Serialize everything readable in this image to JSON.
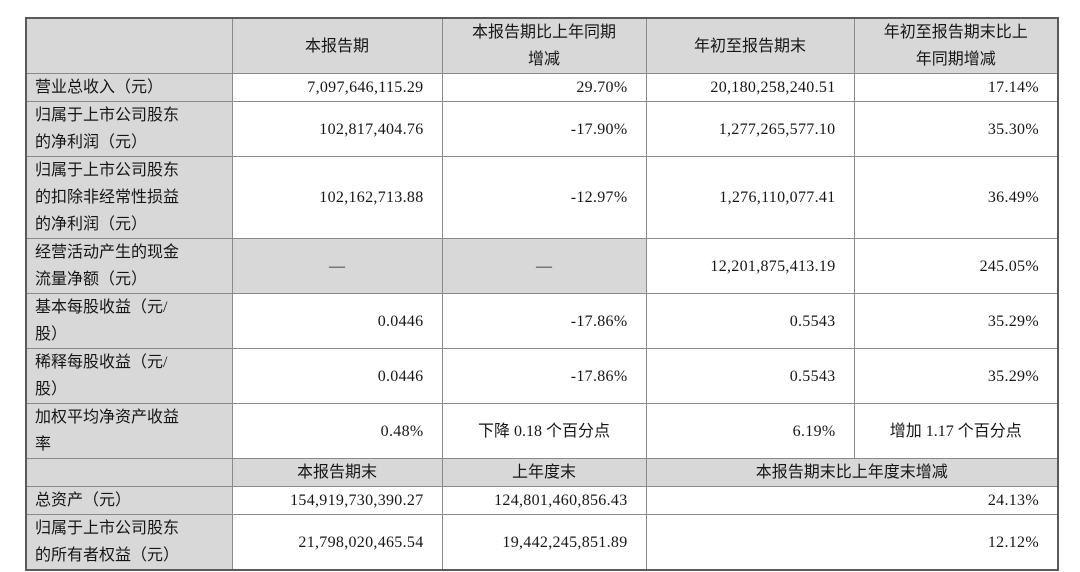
{
  "colors": {
    "page_background": "#ffffff",
    "shaded_cell_bg": "#d8d8d8",
    "grid_border": "#8a8a8a",
    "outer_border": "#5a5a5a",
    "text": "#161616"
  },
  "table": {
    "header_row1": [
      "",
      "本报告期",
      "本报告期比上年同期\n增减",
      "年初至报告期末",
      "年初至报告期末比上\n年同期增减"
    ],
    "rows_period": [
      {
        "label": "营业总收入（元）",
        "cells": [
          "7,097,646,115.29",
          "29.70%",
          "20,180,258,240.51",
          "17.14%"
        ]
      },
      {
        "label": "归属于上市公司股东\n的净利润（元）",
        "cells": [
          "102,817,404.76",
          "-17.90%",
          "1,277,265,577.10",
          "35.30%"
        ]
      },
      {
        "label": "归属于上市公司股东\n的扣除非经常性损益\n的净利润（元）",
        "cells": [
          "102,162,713.88",
          "-12.97%",
          "1,276,110,077.41",
          "36.49%"
        ]
      },
      {
        "label": "经营活动产生的现金\n流量净额（元）",
        "cells": [
          "—",
          "—",
          "12,201,875,413.19",
          "245.05%"
        ]
      },
      {
        "label": "基本每股收益（元/\n股）",
        "cells": [
          "0.0446",
          "-17.86%",
          "0.5543",
          "35.29%"
        ]
      },
      {
        "label": "稀释每股收益（元/\n股）",
        "cells": [
          "0.0446",
          "-17.86%",
          "0.5543",
          "35.29%"
        ]
      },
      {
        "label": "加权平均净资产收益\n率",
        "cells": [
          "0.48%",
          "下降 0.18 个百分点",
          "6.19%",
          "增加 1.17 个百分点"
        ]
      }
    ],
    "header_row2": [
      "",
      "本报告期末",
      "上年度末",
      "本报告期末比上年度末增减"
    ],
    "rows_balance": [
      {
        "label": "总资产（元）",
        "cells": [
          "154,919,730,390.27",
          "124,801,460,856.43",
          "24.13%"
        ]
      },
      {
        "label": "归属于上市公司股东\n的所有者权益（元）",
        "cells": [
          "21,798,020,465.54",
          "19,442,245,851.89",
          "12.12%"
        ]
      }
    ]
  }
}
